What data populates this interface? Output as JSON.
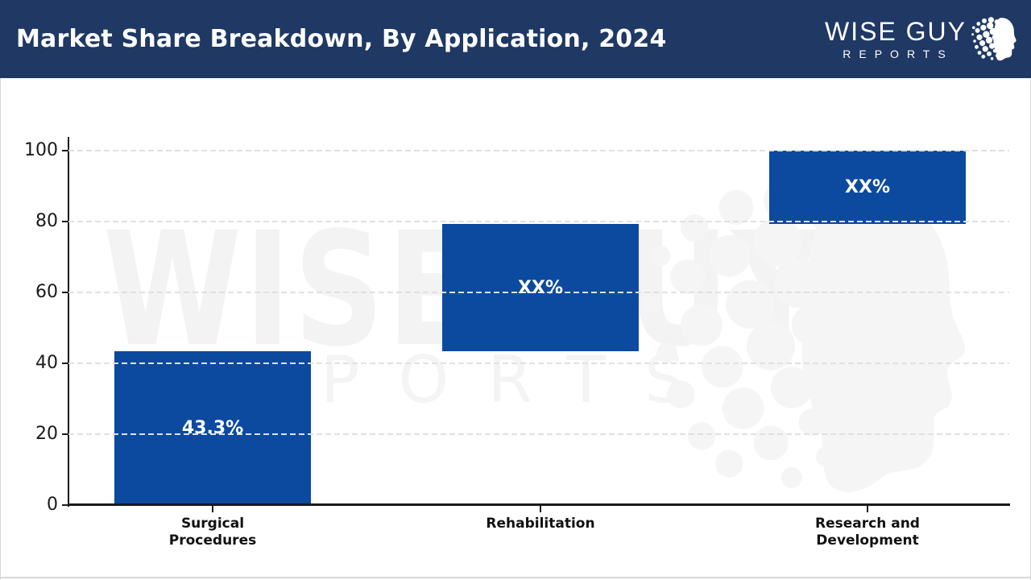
{
  "header": {
    "title": "Market Share Breakdown, By Application, 2024",
    "logo_line1": "WISE GUY",
    "logo_line2": "REPORTS"
  },
  "watermark": {
    "line1": "WISE GUY",
    "line2": "REPORTS"
  },
  "colors": {
    "header_bg": "#1f3864",
    "bar": "#0b4a9f",
    "bar_label": "#ffffff",
    "axis": "#1a1a1a",
    "gridline": "#e1e1e1"
  },
  "chart_data": {
    "type": "bar",
    "subtype": "waterfall-percentage-stacked",
    "title": "Market Share Breakdown, By Application, 2024",
    "categories": [
      "Surgical\nProcedures",
      "Rehabilitation",
      "Research and\nDevelopment"
    ],
    "bars": [
      {
        "category": "Surgical Procedures",
        "start": 0,
        "end": 43.3,
        "label": "43.3%"
      },
      {
        "category": "Rehabilitation",
        "start": 43.3,
        "end": 79.3,
        "label": "XX%"
      },
      {
        "category": "Research and Development",
        "start": 79.3,
        "end": 100,
        "label": "XX%"
      }
    ],
    "y_ticks": [
      0,
      20,
      40,
      60,
      80,
      100
    ],
    "ylim": [
      0,
      104
    ],
    "xlabel": "",
    "ylabel": "",
    "grid": "horizontal-dashed",
    "legend": "none",
    "bar_label_color": "#ffffff"
  }
}
